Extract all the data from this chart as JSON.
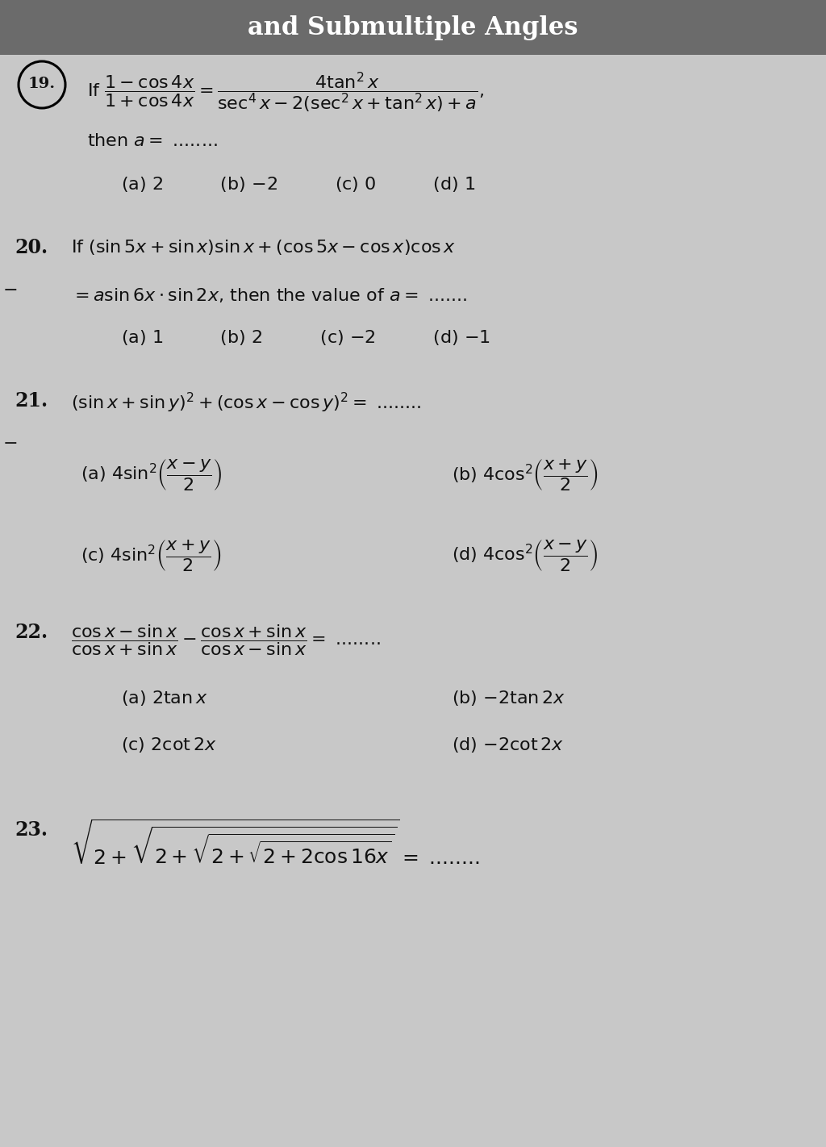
{
  "title": "and Submultiple Angles",
  "title_bg": "#6b6b6b",
  "title_text_color": "#ffffff",
  "body_bg": "#c8c8c8",
  "text_color": "#111111",
  "font_size_title": 22,
  "font_size_body": 16,
  "q19_line1": "If $\\dfrac{1-\\cos 4x}{1+\\cos 4x} = \\dfrac{4\\tan^2 x}{\\sec^4 x - 2(\\sec^2 x + \\tan^2 x) + a}$,",
  "q19_line2": "then $a =$ ........",
  "q19_opts": "(a) 2          (b) $-2$          (c) 0          (d) 1",
  "q20_line1": "If $(\\sin 5x + \\sin x)\\sin x + (\\cos 5x - \\cos x)\\cos x$",
  "q20_line2": "$= a\\sin 6x \\cdot \\sin 2x$, then the value of $a =$ .......",
  "q20_opts": "(a) 1          (b) 2          (c) $-2$          (d) $-1$",
  "q21_line1": "$(\\sin x + \\sin y)^2 + (\\cos x - \\cos y)^2 =$ ........",
  "q21_opta": "(a) $4\\sin^2\\!\\left(\\dfrac{x-y}{2}\\right)$",
  "q21_optb": "(b) $4\\cos^2\\!\\left(\\dfrac{x+y}{2}\\right)$",
  "q21_optc": "(c) $4\\sin^2\\!\\left(\\dfrac{x+y}{2}\\right)$",
  "q21_optd": "(d) $4\\cos^2\\!\\left(\\dfrac{x-y}{2}\\right)$",
  "q22_line1": "$\\dfrac{\\cos x - \\sin x}{\\cos x + \\sin x} - \\dfrac{\\cos x + \\sin x}{\\cos x - \\sin x} =$ ........",
  "q22_opta": "(a) $2\\tan x$",
  "q22_optb": "(b) $-2\\tan 2x$",
  "q22_optc": "(c) $2\\cot 2x$",
  "q22_optd": "(d) $-2\\cot 2x$",
  "q23_line1": "$\\sqrt{2 + \\sqrt{2 + \\sqrt{2 + \\sqrt{2 + 2\\cos 16x}}}} =$ ........"
}
